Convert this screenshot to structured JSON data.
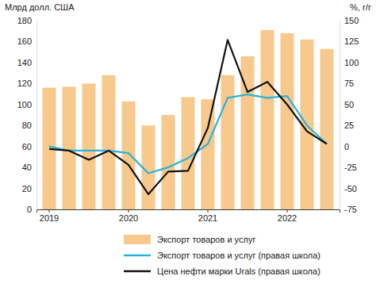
{
  "chart_data": {
    "type": "bar",
    "y_label": "Млрд долл. США",
    "y2_label": "%, г/г",
    "categories": [
      "2019",
      null,
      null,
      null,
      "2020",
      null,
      null,
      null,
      "2021",
      null,
      null,
      null,
      "2022",
      null,
      null
    ],
    "series": [
      {
        "name": "Экспорт товаров и услуг",
        "type": "bar",
        "color": "#f8c98d",
        "values": [
          116,
          117,
          120,
          128,
          103,
          80,
          90,
          107,
          105,
          128,
          146,
          171,
          168,
          162,
          153
        ]
      },
      {
        "name": "Экспорт товаров и услуг (правая школа)",
        "type": "line",
        "axis": "y2",
        "color": "#2bb3d6",
        "values": [
          0,
          -5,
          -5,
          -5,
          -8,
          -32,
          -25,
          -14,
          3,
          58,
          62,
          58,
          60,
          25,
          3
        ]
      },
      {
        "name": "Цена нефти марки Urals (правая школа)",
        "type": "line",
        "axis": "y2",
        "color": "#111111",
        "values": [
          -3,
          -5,
          -16,
          -5,
          -22,
          -57,
          -30,
          -29,
          22,
          127,
          65,
          77,
          50,
          18,
          3
        ]
      }
    ],
    "ylim": [
      0,
      180
    ],
    "yticks": [
      0,
      20,
      40,
      60,
      80,
      100,
      120,
      140,
      160,
      180
    ],
    "y2lim": [
      -75,
      150
    ],
    "y2ticks": [
      -75,
      -50,
      -25,
      0,
      25,
      50,
      75,
      100,
      125,
      150
    ],
    "legend": "bottom",
    "grid": false
  }
}
